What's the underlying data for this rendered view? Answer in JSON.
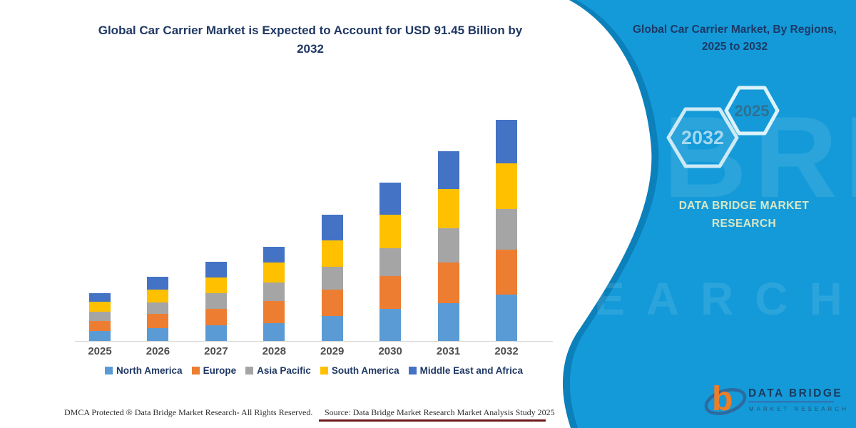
{
  "header": {
    "title_line1": "Global Car Carrier Market is Expected to Account for USD 91.45 Billion by",
    "title_line2": "2032"
  },
  "side_panel": {
    "title": "Global Car Carrier Market, By Regions, 2025 to 2032",
    "hexagon_large_label": "2032",
    "hexagon_small_label": "2025",
    "brand_line1": "DATA BRIDGE MARKET",
    "brand_line2": "RESEARCH"
  },
  "watermark": {
    "logo_glyph": "b",
    "line1": "DATA BRIDGE",
    "line2": "MARKET RESEARCH"
  },
  "logo": {
    "glyph": "b",
    "text": "DATA BRIDGE",
    "subtext": "MARKET RESEARCH"
  },
  "footer": {
    "dmca": "DMCA Protected ® Data Bridge Market Research- All Rights Reserved.",
    "source": "Source: Data Bridge Market Research Market Analysis Study 2025"
  },
  "colors": {
    "teal_background": "#149ad8",
    "teal_edge_shadow": "#0c80ba",
    "title_navy": "#1f3864",
    "brand_pale_green": "#d9e7c6",
    "hexagon_stroke": "#d2edf9",
    "logo_orange": "#ef7d28",
    "logo_navy": "#1c3a5e",
    "logo_underline_blue": "#2e75b6",
    "axis_gray": "#d6d6d6",
    "footer_red_line": "#6e1a1a"
  },
  "chart_data": {
    "type": "bar",
    "stacked": true,
    "title": "Global Car Carrier Market is Expected to Account for USD 91.45 Billion by 2032",
    "unit": "USD billion",
    "xlabel": "",
    "ylabel": "",
    "ylim": [
      0,
      95
    ],
    "grid": false,
    "legend_position": "bottom",
    "categories": [
      "2025",
      "2026",
      "2027",
      "2028",
      "2029",
      "2030",
      "2031",
      "2032"
    ],
    "series": [
      {
        "name": "North America",
        "color": "#5B9BD5",
        "values": [
          4.2,
          5.4,
          6.4,
          7.4,
          10.3,
          13.3,
          15.7,
          19.2
        ]
      },
      {
        "name": "Europe",
        "color": "#ED7D31",
        "values": [
          4.1,
          5.7,
          6.9,
          9.0,
          11.0,
          13.6,
          16.7,
          18.7
        ]
      },
      {
        "name": "Asia Pacific",
        "color": "#A5A5A5",
        "values": [
          3.7,
          4.9,
          6.4,
          7.7,
          9.4,
          11.5,
          14.3,
          16.7
        ]
      },
      {
        "name": "South America",
        "color": "#FFC000",
        "values": [
          4.1,
          5.3,
          6.6,
          8.4,
          11.0,
          13.8,
          16.2,
          19.0
        ]
      },
      {
        "name": "Middle East and Africa",
        "color": "#4472C4",
        "values": [
          3.6,
          5.2,
          6.6,
          6.6,
          10.6,
          13.3,
          15.7,
          17.85
        ]
      }
    ],
    "totals_by_year": [
      19.7,
      26.5,
      32.9,
      39.1,
      52.3,
      65.5,
      78.6,
      91.45
    ],
    "highlight_value": "USD 91.45 Billion by 2032"
  }
}
